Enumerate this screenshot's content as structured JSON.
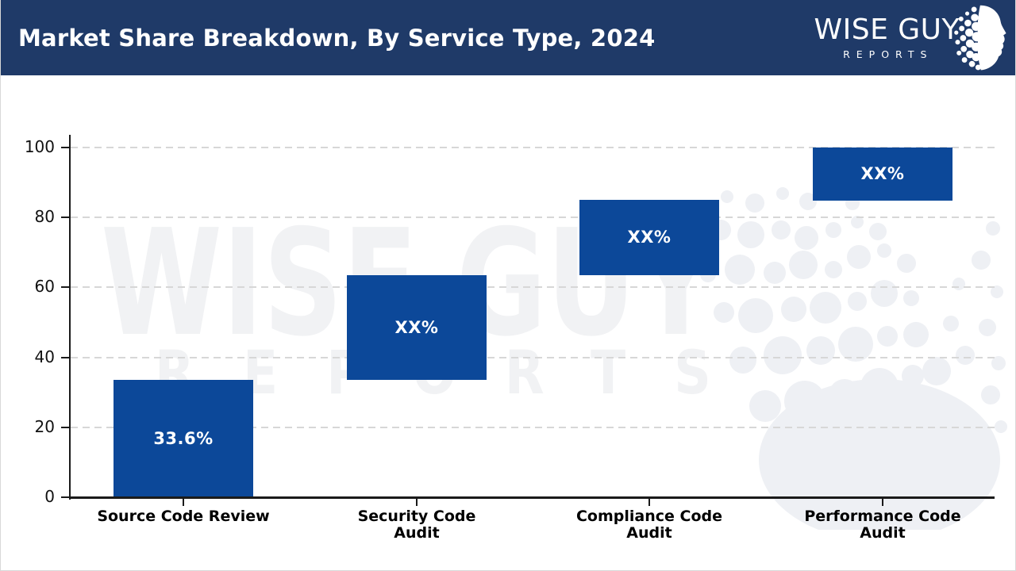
{
  "header": {
    "title": "Market Share Breakdown, By Service Type, 2024",
    "logo_line1": "WISE GUY",
    "logo_line2": "REPORTS"
  },
  "watermark": {
    "line1": "WISE GUY",
    "line2": "REPORTS"
  },
  "colors": {
    "header_bg": "#1f3a68",
    "bar": "#0c4899",
    "axis": "#1a1a1a",
    "grid": "#d7d7d7",
    "watermark": "#f1f2f4",
    "bar_label_text": "#ffffff",
    "title_text": "#ffffff",
    "frame_border": "#d8d8d8"
  },
  "chart_data": {
    "type": "bar",
    "subtype": "floating-segment-waterfall",
    "title": "Market Share Breakdown, By Service Type, 2024",
    "categories": [
      "Source Code Review",
      "Security Code Audit",
      "Compliance Code Audit",
      "Performance Code Audit"
    ],
    "tick_label_lines": [
      [
        "Source Code Review"
      ],
      [
        "Security Code",
        "Audit"
      ],
      [
        "Compliance Code",
        "Audit"
      ],
      [
        "Performance Code",
        "Audit"
      ]
    ],
    "series": [
      {
        "name": "Market share (%)",
        "segments": [
          {
            "category": "Source Code Review",
            "start": 0,
            "end": 33.6,
            "label": "33.6%"
          },
          {
            "category": "Security Code Audit",
            "start": 33.6,
            "end": 63.4,
            "label": "XX%"
          },
          {
            "category": "Compliance Code Audit",
            "start": 63.6,
            "end": 85.0,
            "label": "XX%"
          },
          {
            "category": "Performance Code Audit",
            "start": 84.9,
            "end": 100,
            "label": "XX%"
          }
        ]
      }
    ],
    "xlabel": "",
    "ylabel": "",
    "ylim": [
      0,
      100
    ],
    "yticks": [
      0,
      20,
      40,
      60,
      80,
      100
    ],
    "grid": "horizontal-dashed",
    "legend": "none",
    "bar_color": "#0c4899"
  }
}
